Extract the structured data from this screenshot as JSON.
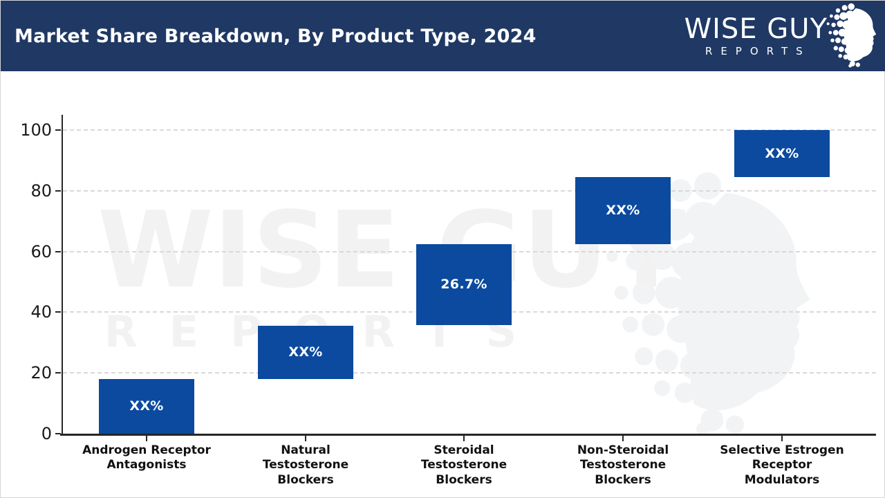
{
  "header": {
    "title": "Market Share Breakdown, By Product Type, 2024",
    "bg_color": "#1f3864",
    "logo": {
      "name": "WISE GUY",
      "sub": "REPORTS"
    }
  },
  "watermark": {
    "line1": "WISE GUY",
    "line2": "REPORTS"
  },
  "chart_data": {
    "type": "bar",
    "subtype": "waterfall",
    "title": "Market Share Breakdown, By Product Type, 2024",
    "categories": [
      "Androgen Receptor\nAntagonists",
      "Natural\nTestosterone\nBlockers",
      "Steroidal\nTestosterone\nBlockers",
      "Non-Steroidal\nTestosterone\nBlockers",
      "Selective Estrogen\nReceptor\nModulators"
    ],
    "series": [
      {
        "name": "Market Share (%)",
        "segments": [
          {
            "category": "Androgen Receptor Antagonists",
            "start": 0,
            "end": 18,
            "label": "XX%"
          },
          {
            "category": "Natural Testosterone Blockers",
            "start": 18,
            "end": 35.6,
            "label": "XX%"
          },
          {
            "category": "Steroidal Testosterone Blockers",
            "start": 35.8,
            "end": 62.5,
            "label": "26.7%"
          },
          {
            "category": "Non-Steroidal Testosterone Blockers",
            "start": 62.5,
            "end": 84.5,
            "label": "XX%"
          },
          {
            "category": "Selective Estrogen Receptor Modulators",
            "start": 84.5,
            "end": 100,
            "label": "XX%"
          }
        ]
      }
    ],
    "xlabel": "",
    "ylabel": "",
    "ylim": [
      0,
      100
    ],
    "yticks": [
      0,
      20,
      40,
      60,
      80,
      100
    ],
    "grid": "horizontal-dashed",
    "legend": "none",
    "bar_color": "#0b4a9f",
    "bar_label_color": "#ffffff",
    "axis_color": "#262626",
    "grid_color": "#d8d8d8"
  }
}
